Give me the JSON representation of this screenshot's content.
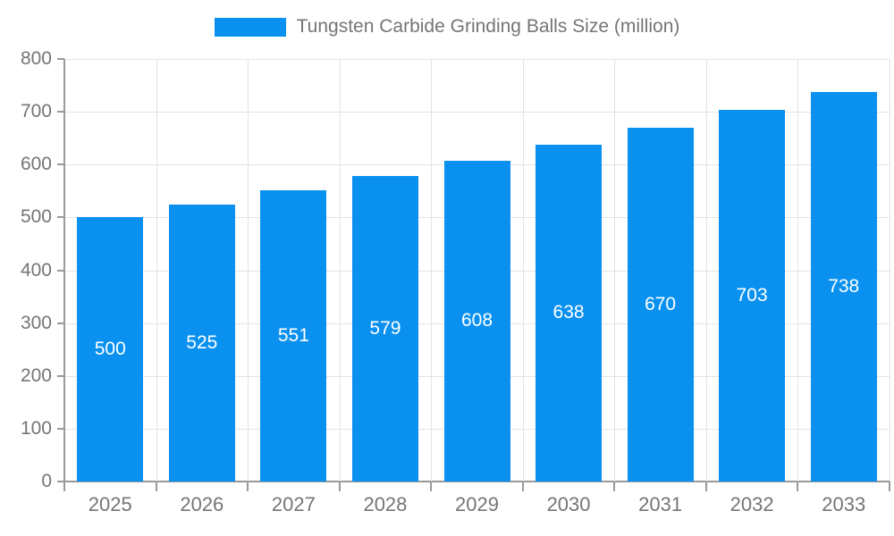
{
  "colors": {
    "bar": "#0a91f0",
    "grid": "#e3e3e3",
    "axis": "#999999",
    "text": "#757575",
    "value_label": "#ffffff",
    "background": "#ffffff"
  },
  "legend": {
    "label": "Tungsten Carbide Grinding Balls Size (million)"
  },
  "chart_data": {
    "type": "bar",
    "title": "Tungsten Carbide Grinding Balls Size (million)",
    "categories": [
      "2025",
      "2026",
      "2027",
      "2028",
      "2029",
      "2030",
      "2031",
      "2032",
      "2033"
    ],
    "series": [
      {
        "name": "Tungsten Carbide Grinding Balls Size (million)",
        "values": [
          500,
          525,
          551,
          579,
          608,
          638,
          670,
          703,
          738
        ]
      }
    ],
    "value_labels": [
      "500",
      "525",
      "551",
      "579",
      "608",
      "638",
      "670",
      "703",
      "738"
    ],
    "xlabel": "",
    "ylabel": "",
    "ylim": [
      0,
      800
    ],
    "yticks": [
      0,
      100,
      200,
      300,
      400,
      500,
      600,
      700,
      800
    ],
    "grid": "on",
    "legend_position": "top-center",
    "value_label_position": "center-of-bar"
  }
}
